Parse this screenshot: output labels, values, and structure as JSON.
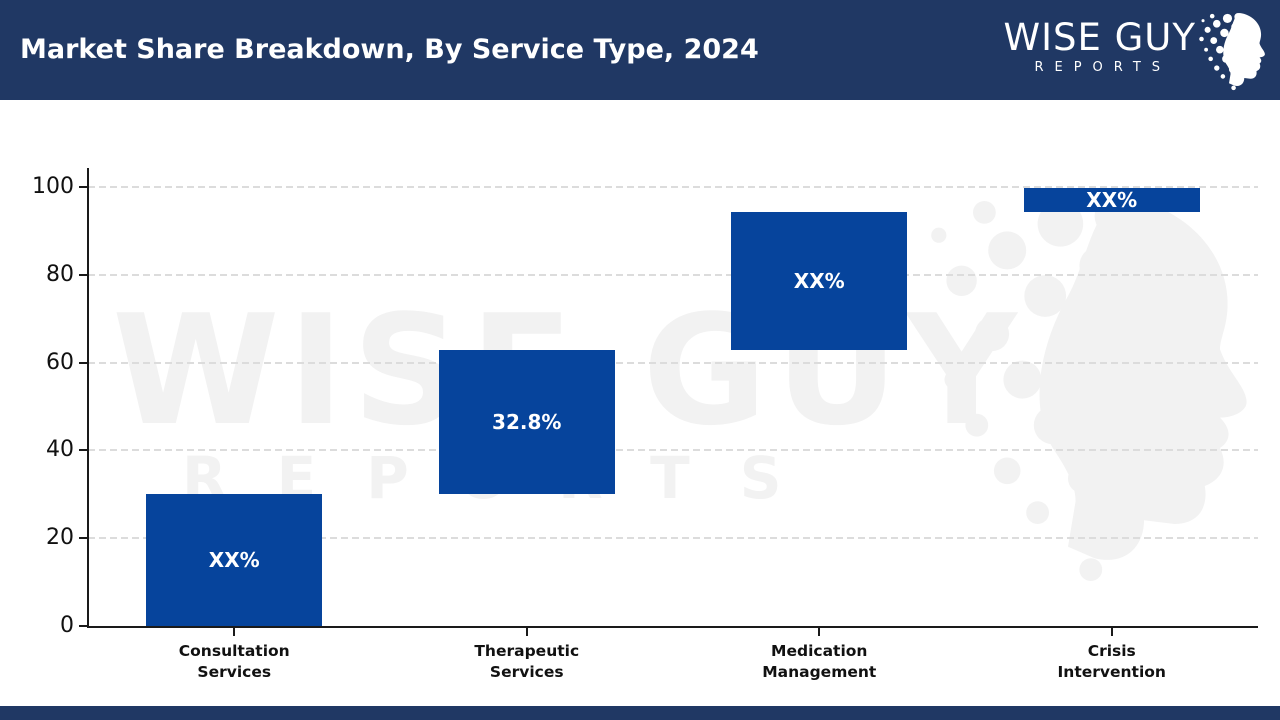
{
  "header": {
    "title": "Market Share Breakdown, By Service Type, 2024",
    "logo": {
      "name": "WISE GUY",
      "sub": "REPORTS"
    }
  },
  "watermark": {
    "line1": "WISE GUY",
    "line2": "REPORTS"
  },
  "colors": {
    "header_bg": "#203864",
    "footer_bg": "#203864",
    "bar": "#06449c",
    "grid": "#dcdcdc",
    "axis_text": "#111111",
    "bar_label_text": "#ffffff",
    "watermark": "#f2f2f2"
  },
  "chart_data": {
    "type": "bar",
    "variant": "floating-waterfall-breakdown",
    "title": "Market Share Breakdown, By Service Type, 2024",
    "categories": [
      [
        "Consultation",
        "Services"
      ],
      [
        "Therapeutic",
        "Services"
      ],
      [
        "Medication",
        "Management"
      ],
      [
        "Crisis",
        "Intervention"
      ]
    ],
    "segments": [
      {
        "name": "Consultation Services",
        "start": 0,
        "end": 30,
        "label": "XX%"
      },
      {
        "name": "Therapeutic Services",
        "start": 30,
        "end": 62.8,
        "label": "32.8%"
      },
      {
        "name": "Medication Management",
        "start": 62.8,
        "end": 94.4,
        "label": "XX%"
      },
      {
        "name": "Crisis Intervention",
        "start": 94.4,
        "end": 99.8,
        "label": "XX%"
      }
    ],
    "ylabel": "",
    "xlabel": "",
    "ylim": [
      0,
      105
    ],
    "yticks": [
      0,
      20,
      40,
      60,
      80,
      100
    ],
    "grid": "horizontal-dashed",
    "legend": false
  }
}
